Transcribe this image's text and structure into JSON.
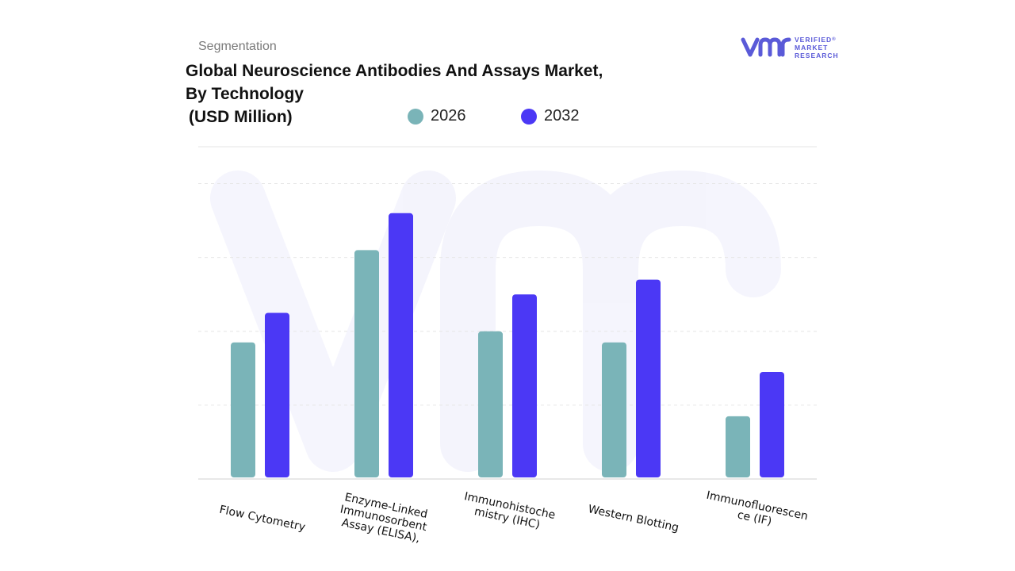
{
  "header": {
    "segment": "Segmentation",
    "title_line1": "Global Neuroscience Antibodies And Assays Market,",
    "title_line2": "By Technology",
    "title_unit": "(USD Million)"
  },
  "logo": {
    "mark": "vmr",
    "line1": "VERIFIED",
    "line2": "MARKET",
    "line3": "RESEARCH",
    "registered": "®",
    "color": "#5a5ad8"
  },
  "chart_data": {
    "type": "bar",
    "title": "Global Neuroscience Antibodies And Assays Market, By Technology (USD Million)",
    "categories": [
      [
        "Flow Cytometry"
      ],
      [
        "Enzyme-Linked",
        "Immunosorbent",
        "Assay (ELISA),"
      ],
      [
        "Immunohistoche",
        "mistry (IHC)"
      ],
      [
        "Western Blotting"
      ],
      [
        "Immunofluorescen",
        "ce (IF)"
      ]
    ],
    "series": [
      {
        "name": "2026",
        "color": "#7ab4b8",
        "values": [
          185,
          310,
          200,
          185,
          85
        ]
      },
      {
        "name": "2032",
        "color": "#4b38f5",
        "values": [
          225,
          360,
          250,
          270,
          145
        ]
      }
    ],
    "ylim": [
      0,
      450
    ],
    "grid": true,
    "legend": "top",
    "xlabel": "",
    "ylabel": ""
  }
}
